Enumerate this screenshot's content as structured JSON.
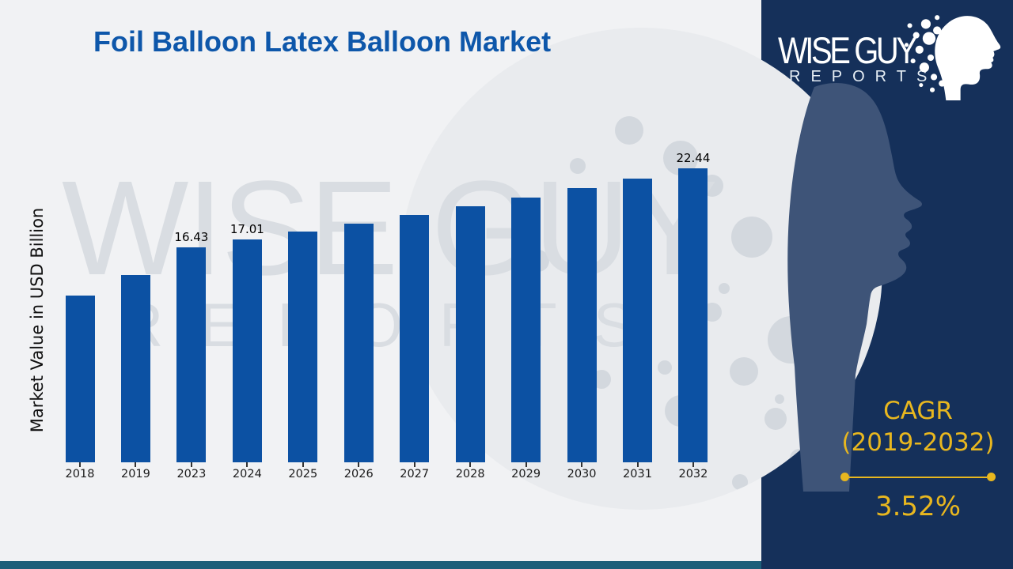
{
  "page": {
    "background": "#f1f2f4",
    "bottom_bar_color": "#1d5f7a"
  },
  "watermark": {
    "line1": "WISE GUY",
    "line2": "REPORTS"
  },
  "brand_panel": {
    "background": "#15305a",
    "logo_line1": "WISE GUY",
    "logo_line2": "REPORTS",
    "cagr": {
      "label": "CAGR",
      "range": "(2019-2032)",
      "value": "3.52%",
      "color": "#e8b71f"
    }
  },
  "chart_data": {
    "type": "bar",
    "title": "Foil Balloon Latex Balloon Market",
    "xlabel": "",
    "ylabel": "Market Value in USD Billion",
    "categories": [
      "2018",
      "2019",
      "2023",
      "2024",
      "2025",
      "2026",
      "2027",
      "2028",
      "2029",
      "2030",
      "2031",
      "2032"
    ],
    "values": [
      12.7,
      14.31,
      16.43,
      17.01,
      17.61,
      18.23,
      18.87,
      19.53,
      20.22,
      20.93,
      21.67,
      22.44
    ],
    "bar_labels": [
      "",
      "",
      "16.43",
      "17.01",
      "",
      "",
      "",
      "",
      "",
      "",
      "",
      "22.44"
    ],
    "bar_color": "#0c51a3",
    "ylim": [
      0,
      24
    ],
    "grid": false,
    "legend": false,
    "units": "USD Billion"
  }
}
